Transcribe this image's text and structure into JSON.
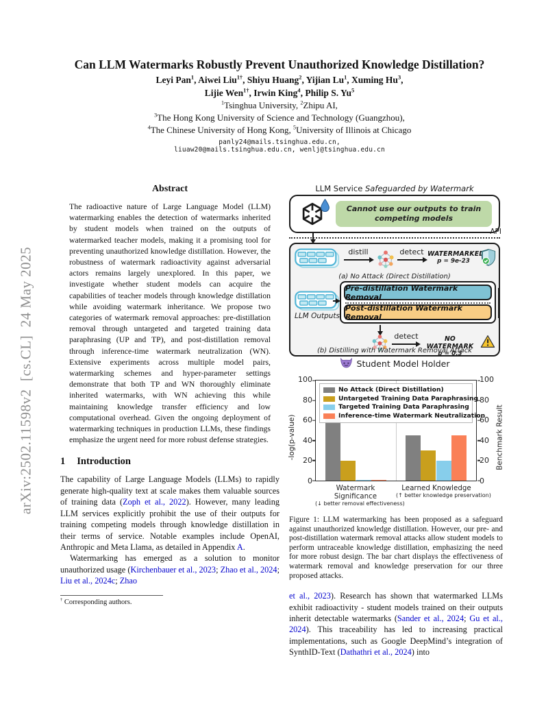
{
  "arxiv_sidebar": "arXiv:2502.11598v2  [cs.CL]  24 May 2025",
  "header": {
    "title": "Can LLM Watermarks Robustly Prevent Unauthorized Knowledge Distillation?",
    "author_lines": [
      [
        {
          "name": "Leyi Pan",
          "sup": "1",
          "after": ", "
        },
        {
          "name": "Aiwei Liu",
          "sup": "1†",
          "after": ", "
        },
        {
          "name": "Shiyu Huang",
          "sup": "2",
          "after": ", "
        },
        {
          "name": "Yijian Lu",
          "sup": "1",
          "after": ", "
        },
        {
          "name": "Xuming Hu",
          "sup": "3",
          "after": ","
        }
      ],
      [
        {
          "name": "Lijie Wen",
          "sup": "1†",
          "after": ", "
        },
        {
          "name": "Irwin King",
          "sup": "4",
          "after": ", "
        },
        {
          "name": "Philip S. Yu",
          "sup": "5",
          "after": ""
        }
      ]
    ],
    "affil_lines": [
      [
        {
          "sup": "1",
          "text": "Tsinghua University, "
        },
        {
          "sup": "2",
          "text": "Zhipu AI,"
        }
      ],
      [
        {
          "sup": "3",
          "text": "The Hong Kong University of Science and Technology (Guangzhou),"
        }
      ],
      [
        {
          "sup": "4",
          "text": "The Chinese University of Hong Kong, "
        },
        {
          "sup": "5",
          "text": "University of Illinois at Chicago"
        }
      ]
    ],
    "emails": [
      "panly24@mails.tsinghua.edu.cn,",
      "liuaw20@mails.tsinghua.edu.cn, wenlj@tsinghua.edu.cn"
    ]
  },
  "abstract": {
    "heading": "Abstract",
    "body": "The radioactive nature of Large Language Model (LLM) watermarking enables the detection of watermarks inherited by student models when trained on the outputs of watermarked teacher models, making it a promising tool for preventing unauthorized knowledge distillation. However, the robustness of watermark radioactivity against adversarial actors remains largely unexplored. In this paper, we investigate whether student models can acquire the capabilities of teacher models through knowledge distillation while avoiding watermark inheritance. We propose two categories of watermark removal approaches: pre-distillation removal through untargeted and targeted training data paraphrasing (UP and TP), and post-distillation removal through inference-time watermark neutralization (WN). Extensive experiments across multiple model pairs, watermarking schemes and hyper-parameter settings demonstrate that both TP and WN thoroughly eliminate inherited watermarks, with WN achieving this while maintaining knowledge transfer efficiency and low computational overhead. Given the ongoing deployment of watermarking techniques in production LLMs, these findings emphasize the urgent need for more robust defense strategies."
  },
  "intro": {
    "number": "1",
    "heading": "Introduction",
    "p1": [
      {
        "text": "The capability of Large Language Models (LLMs) to rapidly generate high-quality text at scale makes them valuable sources of training data ("
      },
      {
        "text": "Zoph et al., 2022",
        "link": true
      },
      {
        "text": "). However, many leading LLM services explicitly prohibit the use of their outputs for training competing models through knowledge distillation in their terms of service. Notable examples include OpenAI, Anthropic and Meta Llama, as detailed in Appendix "
      },
      {
        "text": "A",
        "link": true
      },
      {
        "text": "."
      }
    ],
    "p2": [
      {
        "text": "Watermarking has emerged as a solution to monitor unauthorized usage ("
      },
      {
        "text": "Kirchenbauer et al., 2023",
        "link": true
      },
      {
        "text": "; "
      },
      {
        "text": "Zhao et al., 2024",
        "link": true
      },
      {
        "text": "; "
      },
      {
        "text": "Liu et al., 2024c",
        "link": true
      },
      {
        "text": "; "
      },
      {
        "text": "Zhao",
        "link": true
      }
    ]
  },
  "footnote": {
    "symbol": "†",
    "text": " Corresponding authors."
  },
  "figure": {
    "header_normal": "LLM Service ",
    "header_italic": "Safeguarded by Watermark",
    "service_message": "Cannot use our outputs to train competing models",
    "api_label": "API",
    "part_a": {
      "distill": "distill",
      "detect": "detect",
      "result": "WATERMARKED",
      "pvalue": "p = 9e-23",
      "caption": "(a) No Attack (Direct Distillation)"
    },
    "pre_box": "Pre-distillation Watermark Removal",
    "post_box": "Post-distillation Watermark Removal",
    "llm_outputs_label": "LLM Outputs",
    "part_b": {
      "detect": "detect",
      "result": "NO WATERMARK",
      "pvalue": "p = 0.3",
      "caption": "(b) Distilling with Watermark Removal Attack"
    },
    "student_label": "Student Model Holder"
  },
  "chart_data": {
    "type": "bar",
    "categories": [
      "Watermark Significance",
      "Learned Knowledge"
    ],
    "category_sublabels": [
      "(↓ better removal effectiveness)",
      "(↑ better knowledge preservation)"
    ],
    "series": [
      {
        "name": "No Attack (Direct Distillation)",
        "color": "#808080",
        "values": [
          65,
          45
        ]
      },
      {
        "name": "Untargeted Training Data Paraphrasing",
        "color": "#c99f1d",
        "values": [
          20,
          30
        ]
      },
      {
        "name": "Targeted Training Data Paraphrasing",
        "color": "#87ceeb",
        "values": [
          1,
          20
        ]
      },
      {
        "name": "Inference-time Watermark Neutralization",
        "color": "#fa8057",
        "values": [
          1,
          45
        ]
      }
    ],
    "ylabel_left": "-log(p-value)",
    "ylabel_right": "Benchmark Result",
    "ylim": [
      0,
      100
    ],
    "yticks": [
      0,
      20,
      40,
      60,
      80,
      100
    ],
    "legend_position": "upper left",
    "grid": false
  },
  "caption": "Figure 1: LLM watermarking has been proposed as a safeguard against unauthorized knowledge distillation. However, our pre- and post-distillation watermark removal attacks allow student models to perform untraceable knowledge distillation, emphasizing the need for more robust design. The bar chart displays the effectiveness of watermark removal and knowledge preservation for our three proposed attacks.",
  "right_column_p": [
    {
      "text": "et al., 2023",
      "link": true
    },
    {
      "text": ").  Research has shown that watermarked LLMs exhibit radioactivity - student models trained on their outputs inherit detectable watermarks ("
    },
    {
      "text": "Sander et al., 2024",
      "link": true
    },
    {
      "text": "; "
    },
    {
      "text": "Gu et al., 2024",
      "link": true
    },
    {
      "text": "). This traceability has led to increasing practical implementations, such as Google DeepMind’s integration of SynthID-Text ("
    },
    {
      "text": "Dathathri et al., 2024",
      "link": true
    },
    {
      "text": ") into"
    }
  ]
}
